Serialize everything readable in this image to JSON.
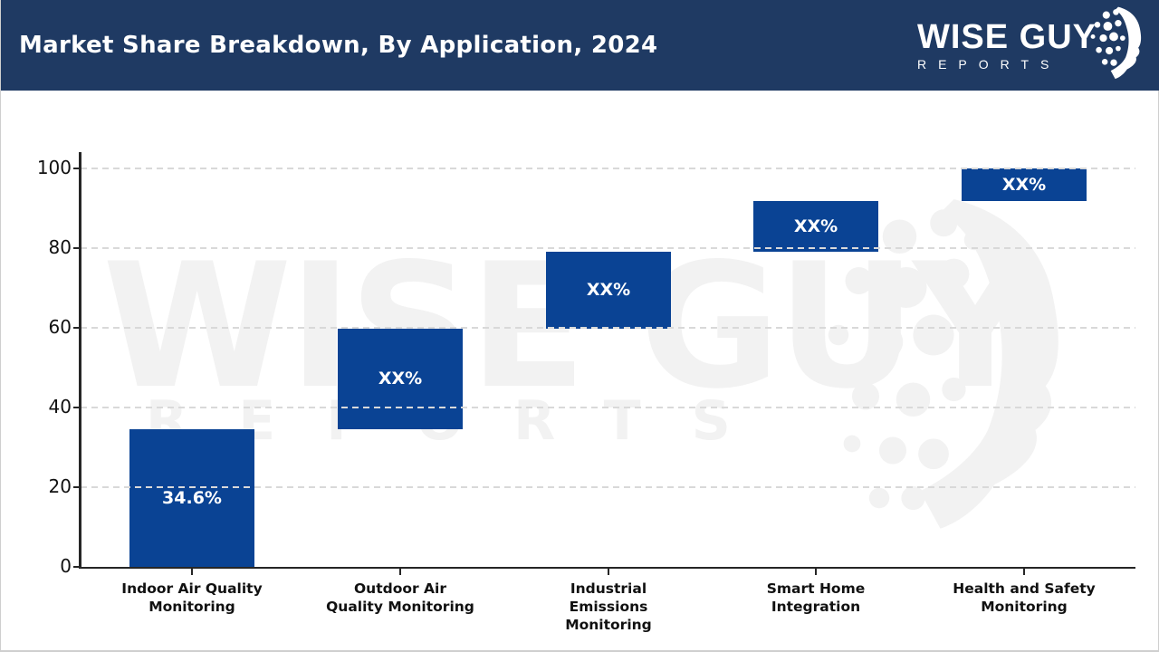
{
  "header": {
    "title": "Market Share Breakdown, By Application, 2024",
    "logo": {
      "line1": "WISE GUY",
      "line2": "REPORTS"
    }
  },
  "watermark": {
    "line1": "WISE GUY",
    "line2": "REPORTS"
  },
  "colors": {
    "header_bg": "#1f3a63",
    "bar": "#0a4394",
    "grid": "#d9d9d9",
    "axis": "#262626",
    "bar_label_text": "#ffffff",
    "watermark": "#f2f2f2"
  },
  "chart_data": {
    "type": "bar",
    "subtype": "waterfall",
    "title": "Market Share Breakdown, By Application, 2024",
    "categories": [
      "Indoor Air Quality\nMonitoring",
      "Outdoor Air\nQuality Monitoring",
      "Industrial\nEmissions\nMonitoring",
      "Smart Home\nIntegration",
      "Health and Safety\nMonitoring"
    ],
    "segments": [
      {
        "start": 0,
        "end": 34.6,
        "label": "34.6%"
      },
      {
        "start": 34.6,
        "end": 59.8,
        "label": "XX%"
      },
      {
        "start": 59.8,
        "end": 79.2,
        "label": "XX%"
      },
      {
        "start": 79.2,
        "end": 91.8,
        "label": "XX%"
      },
      {
        "start": 91.8,
        "end": 100,
        "label": "XX%"
      }
    ],
    "yticks": [
      0,
      20,
      40,
      60,
      80,
      100
    ],
    "ylim": [
      0,
      104
    ],
    "xlabel": "",
    "ylabel": "",
    "grid": "horizontal-dashed",
    "legend": "none"
  }
}
